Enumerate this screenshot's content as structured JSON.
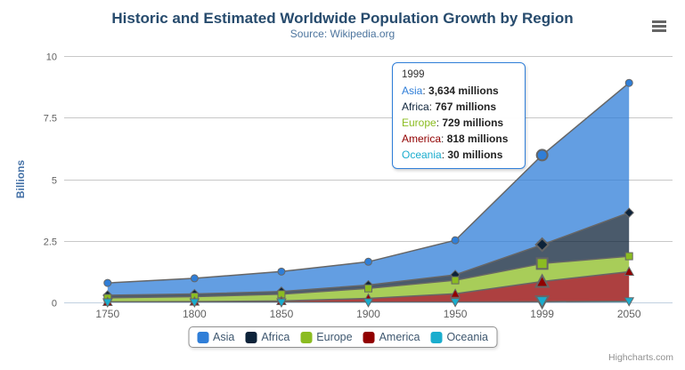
{
  "header": {
    "title": "Historic and Estimated Worldwide Population Growth by Region",
    "subtitle": "Source: Wikipedia.org"
  },
  "chart_data": {
    "type": "area",
    "stacking": "normal",
    "title": "Historic and Estimated Worldwide Population Growth by Region",
    "subtitle": "Source: Wikipedia.org",
    "categories": [
      "1750",
      "1800",
      "1850",
      "1900",
      "1950",
      "1999",
      "2050"
    ],
    "series": [
      {
        "name": "Asia",
        "color": "#2f7ed8",
        "marker": "circle",
        "values": [
          502,
          635,
          809,
          947,
          1402,
          3634,
          5268
        ]
      },
      {
        "name": "Africa",
        "color": "#0d233a",
        "marker": "diamond",
        "values": [
          106,
          107,
          111,
          133,
          221,
          767,
          1766
        ]
      },
      {
        "name": "Europe",
        "color": "#8bbc21",
        "marker": "square",
        "values": [
          163,
          203,
          276,
          408,
          547,
          729,
          628
        ]
      },
      {
        "name": "America",
        "color": "#910000",
        "marker": "triangle",
        "values": [
          18,
          31,
          54,
          156,
          339,
          818,
          1201
        ]
      },
      {
        "name": "Oceania",
        "color": "#1aadce",
        "marker": "triangle-down",
        "values": [
          2,
          2,
          2,
          6,
          13,
          30,
          46
        ]
      }
    ],
    "values_unit": "millions",
    "xlabel": "",
    "ylabel": "Billions",
    "yticks": [
      "0",
      "2.5",
      "5",
      "7.5",
      "10"
    ],
    "ytick_values": [
      0,
      2.5,
      5,
      7.5,
      10
    ],
    "ylim": [
      0,
      10
    ],
    "grid_on": true,
    "legend_position": "bottom",
    "hover_category_index": 5,
    "fill_opacity": 0.75,
    "line_color": "#666666",
    "grid_color": "#C8C8C8",
    "axis_line_color": "#C0D0E0",
    "tick_label_color": "#606060",
    "ylabel_color": "#4572A7"
  },
  "tooltip": {
    "header": "1999",
    "rows": [
      {
        "label": "Asia",
        "color": "#2f7ed8",
        "value": "3,634",
        "unit": "millions"
      },
      {
        "label": "Africa",
        "color": "#0d233a",
        "value": "767",
        "unit": "millions"
      },
      {
        "label": "Europe",
        "color": "#8bbc21",
        "value": "729",
        "unit": "millions"
      },
      {
        "label": "America",
        "color": "#910000",
        "value": "818",
        "unit": "millions"
      },
      {
        "label": "Oceania",
        "color": "#1aadce",
        "value": "30",
        "unit": "millions"
      }
    ]
  },
  "credits": {
    "label": "Highcharts.com"
  },
  "context_menu": {
    "icon": "hamburger-icon"
  }
}
